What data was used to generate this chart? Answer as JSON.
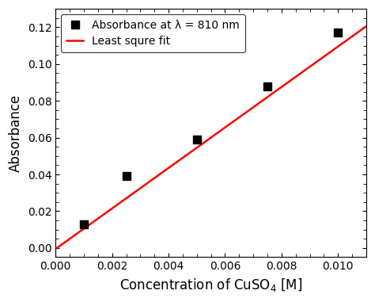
{
  "x_data": [
    0.001,
    0.0025,
    0.005,
    0.0075,
    0.01
  ],
  "y_data": [
    0.013,
    0.039,
    0.059,
    0.088,
    0.117
  ],
  "fit_x": [
    0.0,
    0.011
  ],
  "fit_slope": 11.0,
  "fit_intercept": -0.0005,
  "xlabel": "Concentration of CuSO$_4$ [M]",
  "ylabel": "Absorbance",
  "legend_data_label": "Absorbance at λ = 810 nm",
  "legend_fit_label": "Least squre fit",
  "xlim": [
    0.0,
    0.011
  ],
  "ylim": [
    -0.005,
    0.13
  ],
  "xticks": [
    0.0,
    0.002,
    0.004,
    0.006,
    0.008,
    0.01
  ],
  "yticks": [
    0.0,
    0.02,
    0.04,
    0.06,
    0.08,
    0.1,
    0.12
  ],
  "data_color": "#000000",
  "fit_color": "#ff0000",
  "background_color": "#ffffff",
  "marker": "s",
  "marker_size": 7,
  "line_width": 1.8,
  "tick_label_fontsize": 10,
  "axis_label_fontsize": 12,
  "legend_fontsize": 10
}
